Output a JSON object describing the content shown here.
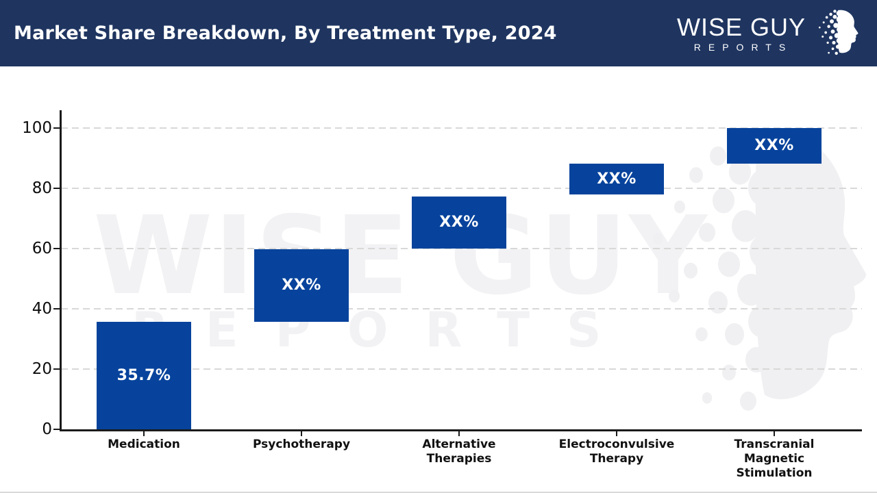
{
  "header": {
    "title": "Market Share Breakdown, By Treatment Type, 2024",
    "logo": {
      "line1": "WISE GUY",
      "line2": "REPORTS"
    }
  },
  "watermark": {
    "line1": "WISE GUY",
    "line2": "REPORTS"
  },
  "colors": {
    "header_bg": "#1f3560",
    "bar_blue": "#07439c",
    "axis": "#1a1a1a",
    "gridline": "#d8d8d8",
    "watermark": "#f2f2f4",
    "bar_label": "#ffffff"
  },
  "chart_data": {
    "type": "bar",
    "subtype": "waterfall",
    "title": "Market Share Breakdown, By Treatment Type, 2024",
    "xlabel": "",
    "ylabel": "",
    "ylim": [
      0,
      100
    ],
    "yticks": [
      0,
      20,
      40,
      60,
      80,
      100
    ],
    "grid": "horizontal-dashed",
    "legend": "none",
    "bar_color": "#07439c",
    "bar_label_color": "#ffffff",
    "categories": [
      "Medication",
      "Psychotherapy",
      "Alternative Therapies",
      "Electroconvulsive Therapy",
      "Transcranial Magnetic Stimulation"
    ],
    "segments": [
      {
        "label": "Medication",
        "tick_label": "Medication",
        "start": 0,
        "end": 35.7,
        "value_label": "35.7%"
      },
      {
        "label": "Psychotherapy",
        "tick_label": "Psychotherapy",
        "start": 35.7,
        "end": 59.8,
        "value_label": "XX%"
      },
      {
        "label": "Alternative Therapies",
        "tick_label": "Alternative\nTherapies",
        "start": 60.0,
        "end": 77.3,
        "value_label": "XX%"
      },
      {
        "label": "Electroconvulsive Therapy",
        "tick_label": "Electroconvulsive\nTherapy",
        "start": 78.0,
        "end": 88.2,
        "value_label": "XX%"
      },
      {
        "label": "Transcranial Magnetic Stimulation",
        "tick_label": "Transcranial\nMagnetic\nStimulation",
        "start": 88.2,
        "end": 100.0,
        "value_label": "XX%"
      }
    ]
  }
}
